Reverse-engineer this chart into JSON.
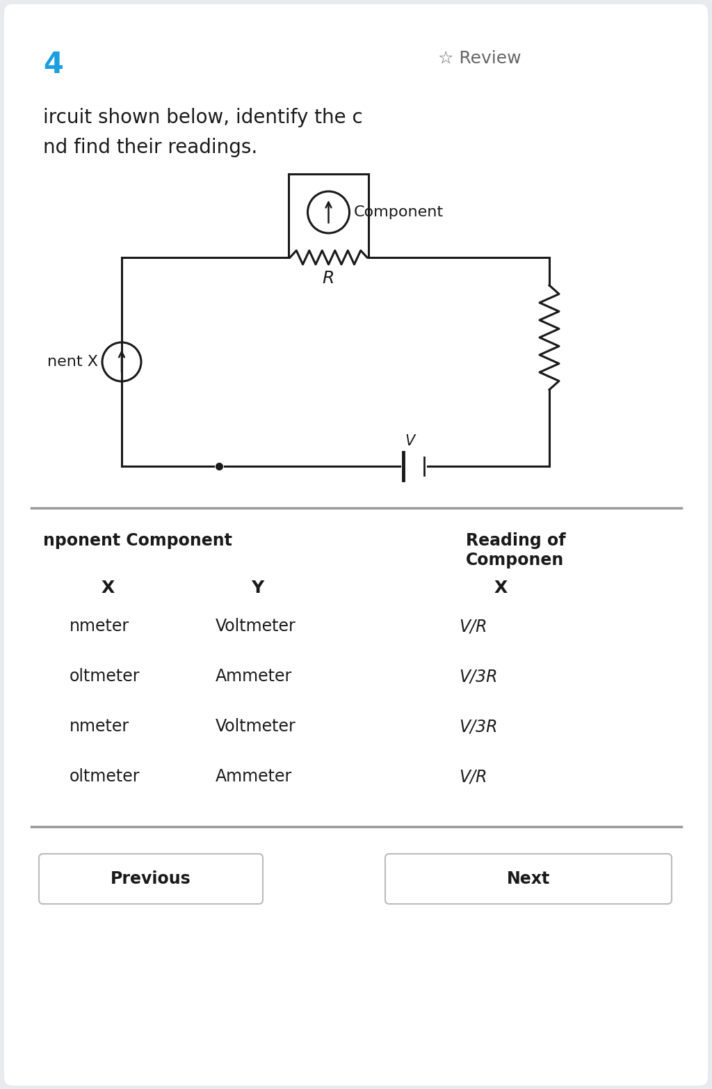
{
  "background_color": "#e8eaed",
  "card_color": "#ffffff",
  "question_number": "4",
  "question_number_color": "#1a9fe0",
  "review_text": "☆ Review",
  "review_color": "#666666",
  "question_text_line1": "ircuit shown below, identify the c",
  "question_text_line2": "nd find their readings.",
  "text_color": "#1a1a1a",
  "circuit_label_component": "Component",
  "circuit_label_R": "R",
  "circuit_label_X": "nent X",
  "circuit_label_V": "V",
  "table_header_col1": "nponent Component",
  "table_header_col2_line1": "Reading of",
  "table_header_col2_line2": "Componen",
  "table_subheader_col1": "X",
  "table_subheader_col2": "Y",
  "table_subheader_col3": "X",
  "table_rows": [
    [
      "nmeter",
      "Voltmeter",
      "V/R"
    ],
    [
      "oltmeter",
      "Ammeter",
      "V/3R"
    ],
    [
      "nmeter",
      "Voltmeter",
      "V/3R"
    ],
    [
      "oltmeter",
      "Ammeter",
      "V/R"
    ]
  ],
  "button_prev": "Previous",
  "button_next": "Next",
  "figwidth": 10.24,
  "figheight": 15.65,
  "dpi": 100
}
